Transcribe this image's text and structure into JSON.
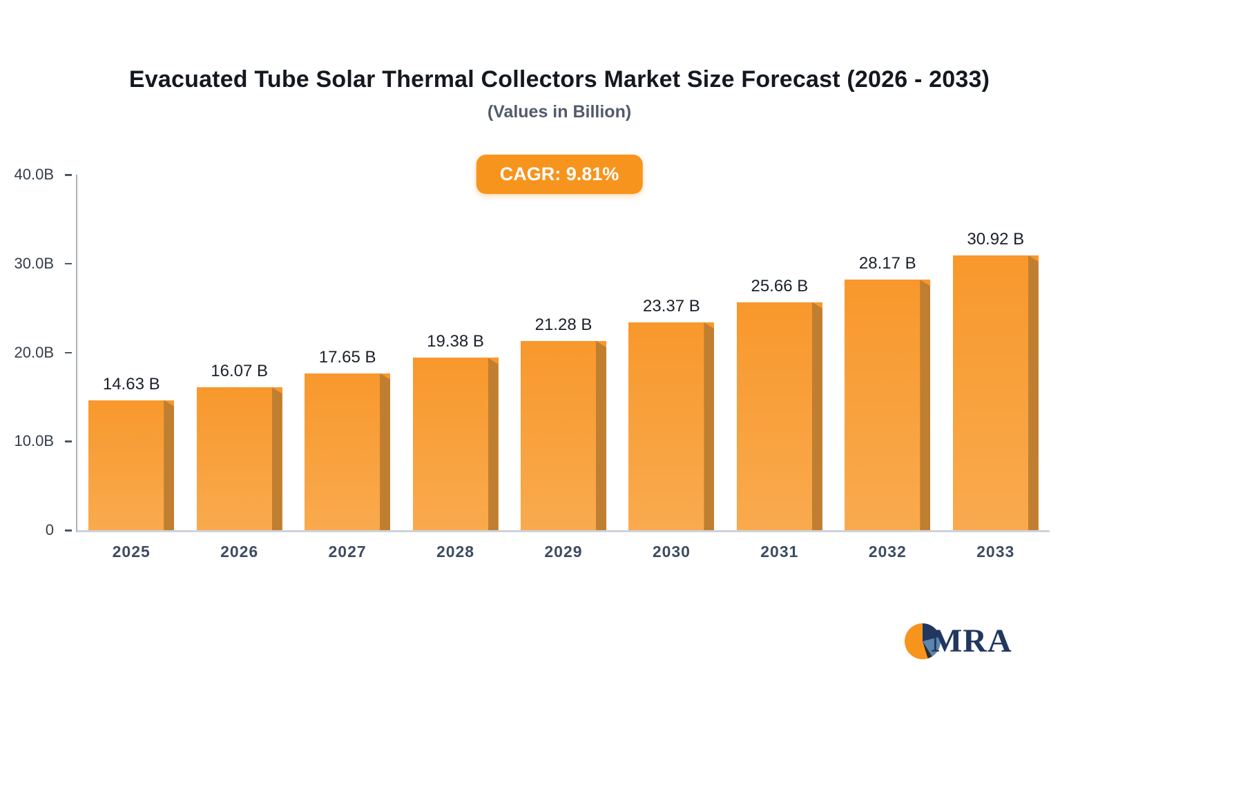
{
  "header": {
    "title": "Evacuated Tube Solar Thermal Collectors Market Size Forecast (2026 - 2033)",
    "subtitle": "(Values in Billion)",
    "badge": "CAGR: 9.81%"
  },
  "chart_data": {
    "type": "bar",
    "title": "Evacuated Tube Solar Thermal Collectors Market Size Forecast (2026 - 2033)",
    "subtitle": "(Values in Billion)",
    "annotation": "CAGR: 9.81%",
    "categories": [
      "2025",
      "2026",
      "2027",
      "2028",
      "2029",
      "2030",
      "2031",
      "2032",
      "2033"
    ],
    "values": [
      14.63,
      16.07,
      17.65,
      19.38,
      21.28,
      23.37,
      25.66,
      28.17,
      30.92
    ],
    "bar_labels": [
      "14.63 B",
      "16.07 B",
      "17.65 B",
      "19.38 B",
      "21.28 B",
      "23.37 B",
      "25.66 B",
      "28.17 B",
      "30.92 B"
    ],
    "xlabel": "",
    "ylabel": "",
    "ylim": [
      0,
      40
    ],
    "yticks": [
      {
        "value": 0,
        "label": "0"
      },
      {
        "value": 10,
        "label": "10.0B"
      },
      {
        "value": 20,
        "label": "20.0B"
      },
      {
        "value": 30,
        "label": "30.0B"
      },
      {
        "value": 40,
        "label": "40.0B"
      }
    ],
    "grid": false,
    "legend": false
  },
  "logo": {
    "text": "MRA"
  },
  "theme": {
    "accent": "#f7941e",
    "bar_top": "#f8982c",
    "bar_bottom": "#f9aa4e",
    "bar_side": "#c07e31",
    "title_color": "#14181f",
    "subtitle_color": "#505b6b",
    "logo_navy": "#21375f",
    "logo_blue": "#5c86ad"
  }
}
